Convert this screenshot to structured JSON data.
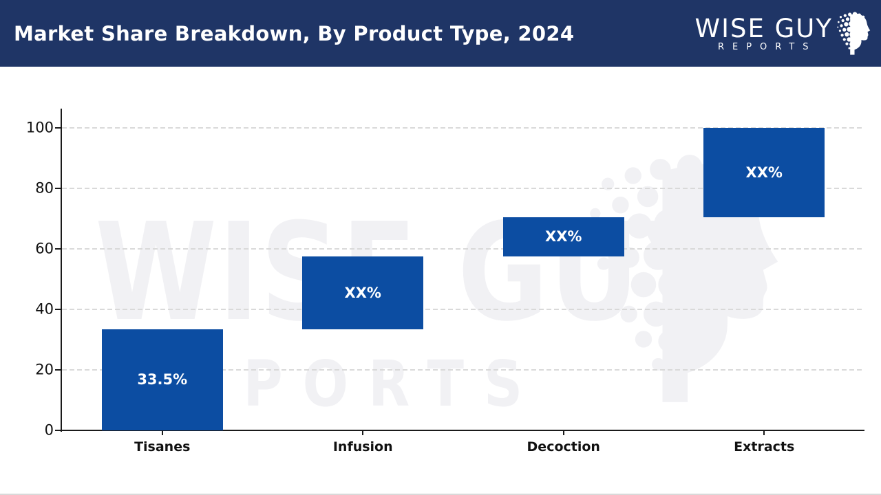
{
  "header": {
    "title": "Market Share Breakdown, By Product Type, 2024",
    "logo": {
      "line1": "WISE GUY",
      "line2": "REPORTS"
    }
  },
  "watermark": {
    "line1": "WISE GUY",
    "line2": "REPORTS"
  },
  "chart_data": {
    "type": "bar",
    "subtype": "waterfall",
    "title": "Market Share Breakdown, By Product Type, 2024",
    "categories": [
      "Tisanes",
      "Infusion",
      "Decoction",
      "Extracts"
    ],
    "bars": [
      {
        "category": "Tisanes",
        "start": 0,
        "end": 33.5,
        "label": "33.5%"
      },
      {
        "category": "Infusion",
        "start": 33.5,
        "end": 57.5,
        "label": "XX%"
      },
      {
        "category": "Decoction",
        "start": 57.5,
        "end": 70.5,
        "label": "XX%"
      },
      {
        "category": "Extracts",
        "start": 70.5,
        "end": 100,
        "label": "XX%"
      }
    ],
    "xlabel": "",
    "ylabel": "",
    "ylim": [
      0,
      100
    ],
    "yticks": [
      0,
      20,
      40,
      60,
      80,
      100
    ],
    "grid": "horizontal-dashed",
    "legend": "none",
    "bar_color": "#0c4da2",
    "bar_label_color": "#ffffff",
    "axis_color": "#1a1a1a",
    "gridline_color": "#d9d9d9",
    "header_color": "#1f3566"
  }
}
